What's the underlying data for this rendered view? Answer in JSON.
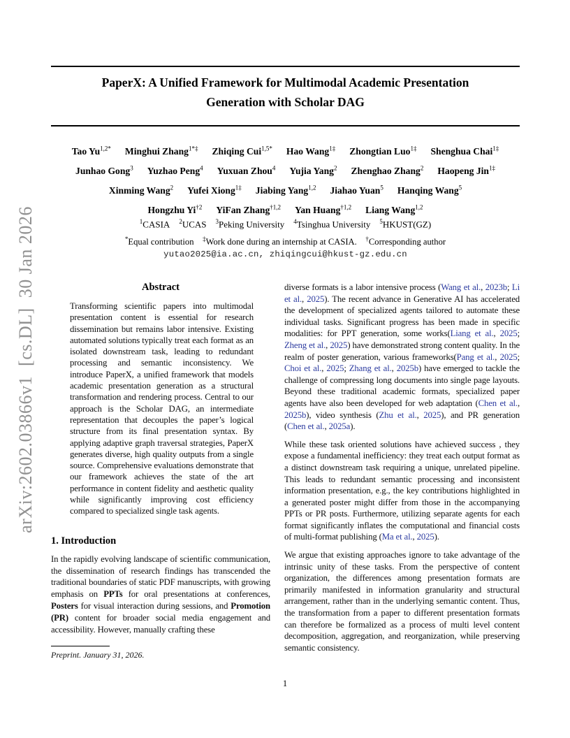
{
  "colors": {
    "citation_link": "#2b3a9f",
    "sidebar_gray": "#919191"
  },
  "arxiv_sidebar": "arXiv:2602.03866v1  [cs.DL]  30 Jan 2026",
  "title": {
    "line1": "PaperX: A Unified Framework for Multimodal Academic Presentation",
    "line2": "Generation with Scholar DAG"
  },
  "authors": {
    "rows": [
      [
        {
          "n": "Tao Yu",
          "s": "1,2*"
        },
        {
          "n": "Minghui Zhang",
          "s": "1*‡"
        },
        {
          "n": "Zhiqing Cui",
          "s": "1,5*"
        },
        {
          "n": "Hao Wang",
          "s": "1‡"
        },
        {
          "n": "Zhongtian Luo",
          "s": "1‡"
        },
        {
          "n": "Shenghua Chai",
          "s": "1‡"
        }
      ],
      [
        {
          "n": "Junhao Gong",
          "s": "3"
        },
        {
          "n": "Yuzhao Peng",
          "s": "4"
        },
        {
          "n": "Yuxuan Zhou",
          "s": "4"
        },
        {
          "n": "Yujia Yang",
          "s": "2"
        },
        {
          "n": "Zhenghao Zhang",
          "s": "2"
        },
        {
          "n": "Haopeng Jin",
          "s": "1‡"
        }
      ],
      [
        {
          "n": "Xinming Wang",
          "s": "2"
        },
        {
          "n": "Yufei Xiong",
          "s": "1‡"
        },
        {
          "n": "Jiabing Yang",
          "s": "1,2"
        },
        {
          "n": "Jiahao Yuan",
          "s": "5"
        },
        {
          "n": "Hanqing Wang",
          "s": "5"
        }
      ],
      [
        {
          "n": "Hongzhu Yi",
          "s": "†2"
        },
        {
          "n": "YiFan Zhang",
          "s": "†1,2"
        },
        {
          "n": "Yan Huang",
          "s": "†1,2"
        },
        {
          "n": "Liang Wang",
          "s": "1,2"
        }
      ]
    ]
  },
  "affiliations": [
    {
      "t": "1",
      "s": "sup"
    },
    {
      "t": "CASIA"
    },
    {
      "t": "    "
    },
    {
      "t": "2",
      "s": "sup"
    },
    {
      "t": "UCAS"
    },
    {
      "t": "    "
    },
    {
      "t": "3",
      "s": "sup"
    },
    {
      "t": "Peking University"
    },
    {
      "t": "    "
    },
    {
      "t": "4",
      "s": "sup"
    },
    {
      "t": "Tsinghua University"
    },
    {
      "t": "    "
    },
    {
      "t": "5",
      "s": "sup"
    },
    {
      "t": "HKUST(GZ)"
    }
  ],
  "author_notes": [
    {
      "t": "*",
      "s": "sup"
    },
    {
      "t": "Equal contribution"
    },
    {
      "t": "    "
    },
    {
      "t": "‡",
      "s": "sup"
    },
    {
      "t": "Work done during an internship at CASIA."
    },
    {
      "t": "    "
    },
    {
      "t": "†",
      "s": "sup"
    },
    {
      "t": "Corresponding author"
    }
  ],
  "emails": "yutao2025@ia.ac.cn, zhiqingcui@hkust-gz.edu.cn",
  "abstract": {
    "heading": "Abstract",
    "text": "Transforming scientific papers into multimodal presentation content is essential for research dissemination but remains labor intensive. Existing automated solutions typically treat each format as an isolated downstream task, leading to redundant processing and semantic inconsistency. We introduce PaperX, a unified framework that models academic presentation generation as a structural transformation and rendering process. Central to our approach is the Scholar DAG, an intermediate representation that decouples the paper’s logical structure from its final presentation syntax. By applying adaptive graph traversal strategies, PaperX generates diverse, high quality outputs from a single source. Comprehensive evaluations demonstrate that our framework achieves the state of the art performance in content fidelity and aesthetic quality while significantly improving cost efficiency compared to specialized single task agents."
  },
  "introduction": {
    "heading": "1. Introduction",
    "paragraph": [
      {
        "t": "In the rapidly evolving landscape of scientific communication, the dissemination of research findings has transcended the traditional boundaries of static PDF manuscripts, with growing emphasis on "
      },
      {
        "t": "PPTs",
        "s": "b"
      },
      {
        "t": " for oral presentations at conferences, "
      },
      {
        "t": "Posters",
        "s": "b"
      },
      {
        "t": " for visual interaction during sessions, and "
      },
      {
        "t": "Promotion (PR)",
        "s": "b"
      },
      {
        "t": " content for broader social media engagement and accessibility. However, manually crafting these"
      }
    ]
  },
  "right_column": {
    "p1": [
      {
        "t": "diverse formats is a labor intensive process ("
      },
      {
        "t": "Wang et al.",
        "s": "link"
      },
      {
        "t": ", "
      },
      {
        "t": "2023b",
        "s": "link"
      },
      {
        "t": "; "
      },
      {
        "t": "Li et al.",
        "s": "link"
      },
      {
        "t": ", "
      },
      {
        "t": "2025",
        "s": "link"
      },
      {
        "t": "). The recent advance in Generative AI has accelerated the development of specialized agents tailored to automate these individual tasks. Significant progress has been made in specific modalities: for PPT generation, some works("
      },
      {
        "t": "Liang et al.",
        "s": "link"
      },
      {
        "t": ", "
      },
      {
        "t": "2025",
        "s": "link"
      },
      {
        "t": "; "
      },
      {
        "t": "Zheng et al.",
        "s": "link"
      },
      {
        "t": ", "
      },
      {
        "t": "2025",
        "s": "link"
      },
      {
        "t": ") have demonstrated strong content quality. In the realm of poster generation, various frameworks("
      },
      {
        "t": "Pang et al.",
        "s": "link"
      },
      {
        "t": ", "
      },
      {
        "t": "2025",
        "s": "link"
      },
      {
        "t": "; "
      },
      {
        "t": "Choi et al.",
        "s": "link"
      },
      {
        "t": ", "
      },
      {
        "t": "2025",
        "s": "link"
      },
      {
        "t": "; "
      },
      {
        "t": "Zhang et al.",
        "s": "link"
      },
      {
        "t": ", "
      },
      {
        "t": "2025b",
        "s": "link"
      },
      {
        "t": ") have emerged to tackle the challenge of compressing long documents into single page layouts. Beyond these traditional academic formats, specialized paper agents have also been developed for web adaptation ("
      },
      {
        "t": "Chen et al.",
        "s": "link"
      },
      {
        "t": ", "
      },
      {
        "t": "2025b",
        "s": "link"
      },
      {
        "t": "), video synthesis ("
      },
      {
        "t": "Zhu et al.",
        "s": "link"
      },
      {
        "t": ", "
      },
      {
        "t": "2025",
        "s": "link"
      },
      {
        "t": "), and PR generation ("
      },
      {
        "t": "Chen et al.",
        "s": "link"
      },
      {
        "t": ", "
      },
      {
        "t": "2025a",
        "s": "link"
      },
      {
        "t": ")."
      }
    ],
    "p2": [
      {
        "t": "While these task oriented solutions have achieved success , they expose a fundamental inefficiency: they treat each output format as a distinct downstream task requiring a unique, unrelated pipeline. This leads to redundant semantic processing and inconsistent information presentation, e.g., the key contributions highlighted in a generated poster might differ from those in the accompanying PPTs or PR posts. Furthermore, utilizing separate agents for each format significantly inflates the computational and financial costs of multi-format publishing ("
      },
      {
        "t": "Ma et al.",
        "s": "link"
      },
      {
        "t": ", "
      },
      {
        "t": "2025",
        "s": "link"
      },
      {
        "t": ")."
      }
    ],
    "p3": "We argue that existing approaches ignore to take advantage of the intrinsic unity of these tasks. From the perspective of content organization, the differences among presentation formats are primarily manifested in information granularity and structural arrangement, rather than in the underlying semantic content. Thus, the transformation from a paper to different presentation formats can therefore be formalized as a process of multi level content decomposition, aggregation, and reorganization, while preserving semantic consistency."
  },
  "footnote": "Preprint. January 31, 2026.",
  "page_number": "1"
}
